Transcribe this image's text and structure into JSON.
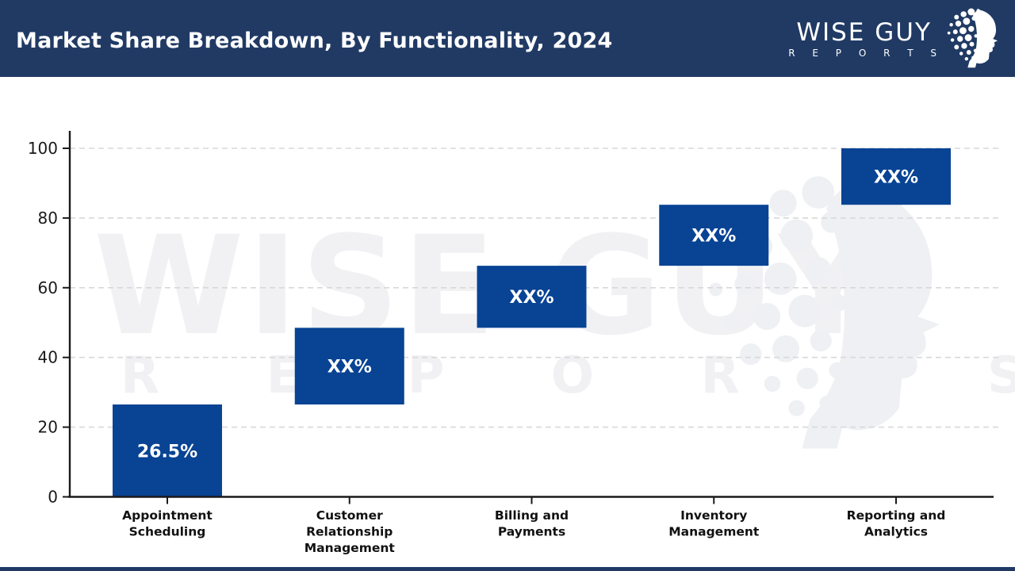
{
  "header": {
    "title": "Market Share Breakdown, By Functionality, 2024"
  },
  "logo": {
    "name": "WISE GUY",
    "sub": "R E P O R T S"
  },
  "watermark": {
    "name": "WISE GUY",
    "sub": "R E P O R T S"
  },
  "colors": {
    "header_bg": "#203a64",
    "title_text": "#ffffff",
    "bar": "#084394",
    "bar_label": "#ffffff",
    "grid": "#d8d8d8",
    "axis": "#1a1a1a",
    "tick_label": "#1a1a1a",
    "category_label": "#111111",
    "watermark": "#f1f1f4"
  },
  "chart_data": {
    "type": "bar",
    "variant": "waterfall",
    "title": "Market Share Breakdown, By Functionality, 2024",
    "categories": [
      "Appointment Scheduling",
      "Customer Relationship Management",
      "Billing and Payments",
      "Inventory Management",
      "Reporting and Analytics"
    ],
    "category_label_lines": [
      [
        "Appointment",
        "Scheduling"
      ],
      [
        "Customer",
        "Relationship",
        "Management"
      ],
      [
        "Billing and",
        "Payments"
      ],
      [
        "Inventory",
        "Management"
      ],
      [
        "Reporting and",
        "Analytics"
      ]
    ],
    "segments": [
      {
        "category": "Appointment Scheduling",
        "start": 0,
        "end": 26.5,
        "label": "26.5%"
      },
      {
        "category": "Customer Relationship Management",
        "start": 26.5,
        "end": 48.5,
        "label": "XX%"
      },
      {
        "category": "Billing and Payments",
        "start": 48.5,
        "end": 66.3,
        "label": "XX%"
      },
      {
        "category": "Inventory Management",
        "start": 66.3,
        "end": 83.8,
        "label": "XX%"
      },
      {
        "category": "Reporting and Analytics",
        "start": 83.8,
        "end": 100,
        "label": "XX%"
      }
    ],
    "xlabel": "",
    "ylabel": "",
    "ylim": [
      0,
      100
    ],
    "yticks": [
      0,
      20,
      40,
      60,
      80,
      100
    ],
    "grid": "horizontal-dashed",
    "legend": "none"
  }
}
